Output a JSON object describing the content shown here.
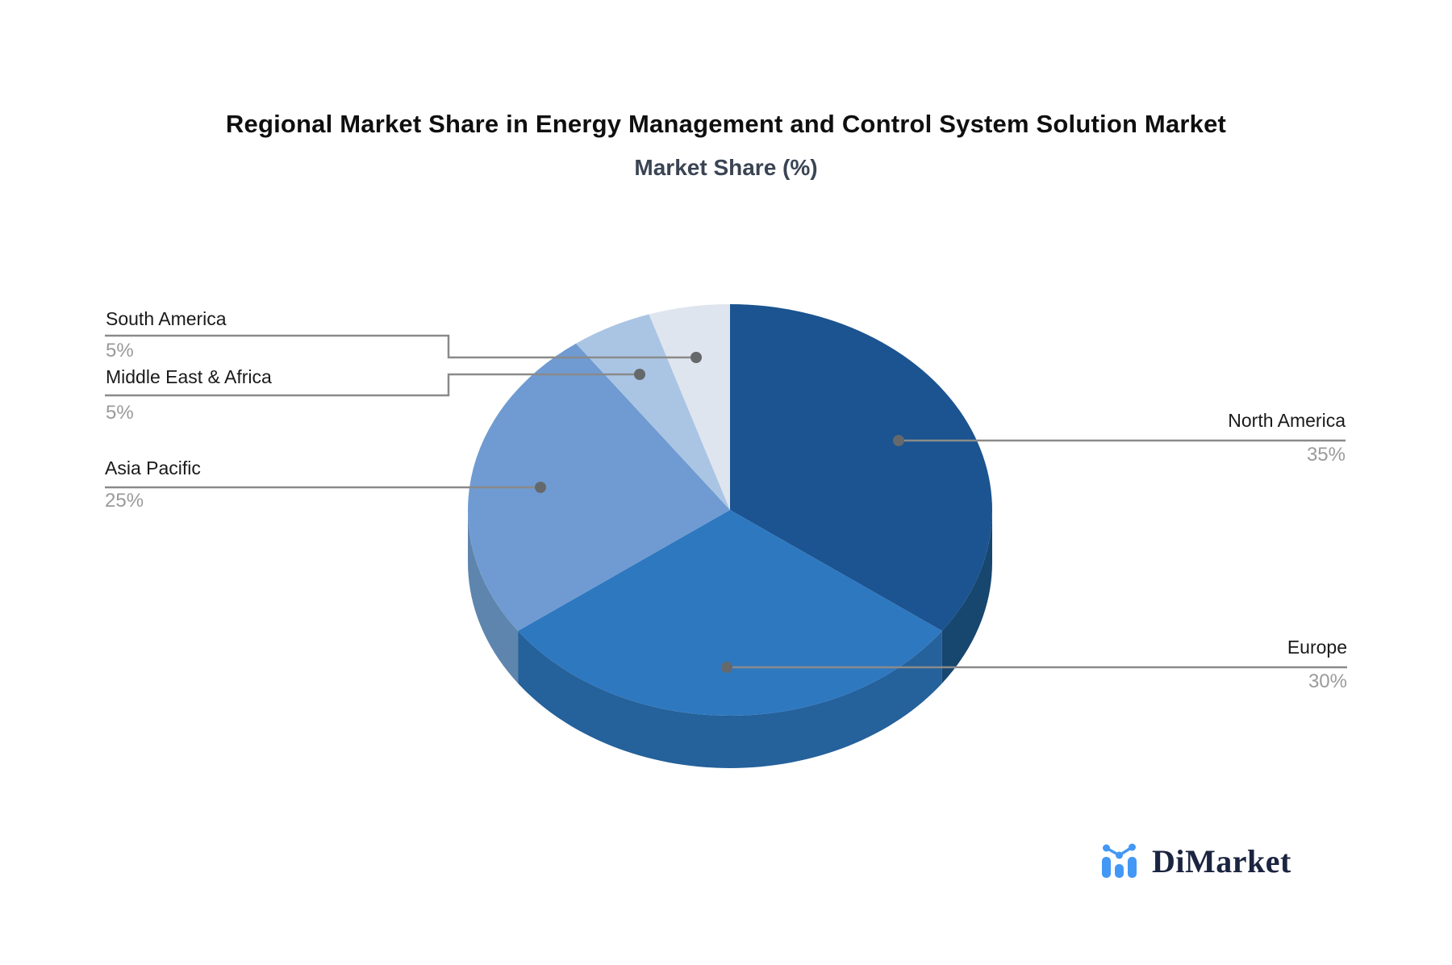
{
  "title": "Regional Market Share in Energy Management and Control System Solution Market",
  "subtitle": "Market Share (%)",
  "chart_data": {
    "type": "pie",
    "style": "3d",
    "title": "Regional Market Share in Energy Management and Control System Solution Market",
    "subtitle": "Market Share (%)",
    "unit": "%",
    "start_angle_deg": 0,
    "direction": "clockwise",
    "categories": [
      "North America",
      "Europe",
      "Asia Pacific",
      "Middle East & Africa",
      "South America"
    ],
    "values": [
      35,
      30,
      25,
      5,
      5
    ],
    "slices": [
      {
        "label": "North America",
        "value": 35,
        "value_text": "35%",
        "color": "#1B5490",
        "side_color": "#17466F"
      },
      {
        "label": "Europe",
        "value": 30,
        "value_text": "30%",
        "color": "#2E78C0",
        "side_color": "#25619B"
      },
      {
        "label": "Asia Pacific",
        "value": 25,
        "value_text": "25%",
        "color": "#6F9BD2",
        "side_color": "#5E85AD"
      },
      {
        "label": "Middle East & Africa",
        "value": 5,
        "value_text": "5%",
        "color": "#AAC5E4",
        "side_color": "#8FA9C6"
      },
      {
        "label": "South America",
        "value": 5,
        "value_text": "5%",
        "color": "#DFE5EE",
        "side_color": "#C2CBD8"
      }
    ],
    "legend": "callout-labels"
  },
  "callouts": [
    {
      "id": "north-america",
      "label": "North America",
      "value_text": "35%",
      "side": "right"
    },
    {
      "id": "europe",
      "label": "Europe",
      "value_text": "30%",
      "side": "right"
    },
    {
      "id": "asia-pacific",
      "label": "Asia Pacific",
      "value_text": "25%",
      "side": "left"
    },
    {
      "id": "middle-east-africa",
      "label": "Middle East & Africa",
      "value_text": "5%",
      "side": "left"
    },
    {
      "id": "south-america",
      "label": "South America",
      "value_text": "5%",
      "side": "left"
    }
  ],
  "colors": {
    "background": "#FFFFFF",
    "title_text": "#0F0F0F",
    "subtitle_text": "#3A4453",
    "label_text": "#1A1A1A",
    "value_text": "#9A9A9A",
    "leader_line": "#8A8A8A",
    "leader_dot": "#65696C",
    "logo_text": "#1B2440",
    "logo_icon": "#4398F6"
  },
  "logo": {
    "text": "DiMarket"
  }
}
